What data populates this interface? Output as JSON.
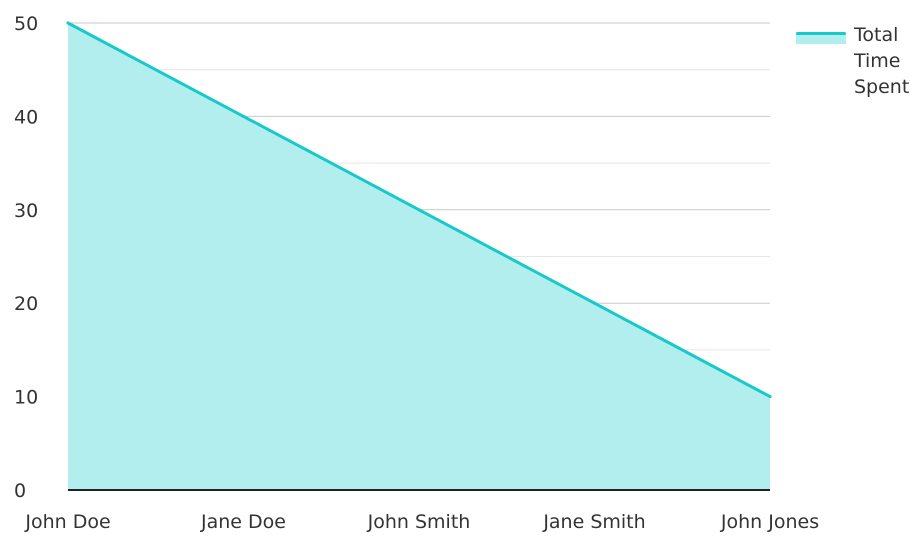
{
  "chart_data": {
    "type": "area",
    "title": "",
    "xlabel": "",
    "ylabel": "",
    "categories": [
      "John Doe",
      "Jane Doe",
      "John Smith",
      "Jane Smith",
      "John Jones"
    ],
    "series": [
      {
        "name": "Total Time Spent",
        "values": [
          50,
          40,
          30,
          20,
          10
        ]
      }
    ],
    "ylim": [
      0,
      50
    ],
    "yticks": [
      0,
      10,
      20,
      30,
      40,
      50
    ],
    "grid": true,
    "legend_position": "top-right",
    "colors": {
      "line": "#17c9c9",
      "fill": "#b2eeee",
      "grid_major": "#c8c8c8",
      "grid_minor": "#e6e6e6",
      "axis": "#222222"
    }
  }
}
